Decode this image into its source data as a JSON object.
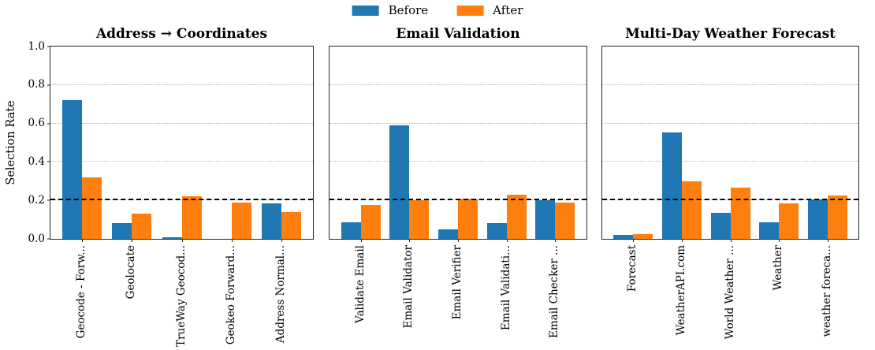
{
  "figure": {
    "ylabel": "Selection Rate",
    "background": "#ffffff",
    "gridline_color": "#b0b0b0",
    "baseline_color": "#000000"
  },
  "legend": {
    "position": "top-center",
    "items": [
      {
        "label": "Before",
        "color": "#1f77b4"
      },
      {
        "label": "After",
        "color": "#ff7f0e"
      }
    ]
  },
  "chart_data": [
    {
      "type": "bar",
      "title": "Address → Coordinates",
      "categories": [
        "Geocode - Forw...",
        "Geolocate",
        "TrueWay Geocod...",
        "Geokeo Forward...",
        "Address Normal..."
      ],
      "series": [
        {
          "name": "Before",
          "color": "#1f77b4",
          "values": [
            0.72,
            0.08,
            0.01,
            0.0,
            0.185
          ]
        },
        {
          "name": "After",
          "color": "#ff7f0e",
          "values": [
            0.32,
            0.13,
            0.22,
            0.19,
            0.14
          ]
        }
      ],
      "ylabel": "Selection Rate",
      "ylim": [
        0,
        1.0
      ],
      "yticks": [
        0.0,
        0.2,
        0.4,
        0.6,
        0.8,
        1.0
      ],
      "ytick_labels": [
        "0.0",
        "0.2",
        "0.4",
        "0.6",
        "0.8",
        "1.0"
      ],
      "baseline": 0.2,
      "grid": "horizontal dotted at 0.2, 0.4, 0.6, 0.8",
      "legend_position": "figure top center"
    },
    {
      "type": "bar",
      "title": "Email Validation",
      "categories": [
        "Validate Email",
        "Email Validator",
        "Email Verifier",
        "Email Validati...",
        "Email Checker ..."
      ],
      "series": [
        {
          "name": "Before",
          "color": "#1f77b4",
          "values": [
            0.085,
            0.59,
            0.05,
            0.08,
            0.2
          ]
        },
        {
          "name": "After",
          "color": "#ff7f0e",
          "values": [
            0.175,
            0.2,
            0.21,
            0.23,
            0.19
          ]
        }
      ],
      "ylim": [
        0,
        1.0
      ],
      "yticks": [
        0.0,
        0.2,
        0.4,
        0.6,
        0.8,
        1.0
      ],
      "ytick_labels": [],
      "baseline": 0.2,
      "grid": "horizontal dotted at 0.2, 0.4, 0.6, 0.8"
    },
    {
      "type": "bar",
      "title": "Multi-Day Weather Forecast",
      "categories": [
        "Forecast",
        "WeatherAPI.com",
        "World Weather ...",
        "Weather",
        "weather foreca..."
      ],
      "series": [
        {
          "name": "Before",
          "color": "#1f77b4",
          "values": [
            0.02,
            0.555,
            0.135,
            0.085,
            0.205
          ]
        },
        {
          "name": "After",
          "color": "#ff7f0e",
          "values": [
            0.025,
            0.3,
            0.265,
            0.185,
            0.225
          ]
        }
      ],
      "ylim": [
        0,
        1.0
      ],
      "yticks": [
        0.0,
        0.2,
        0.4,
        0.6,
        0.8,
        1.0
      ],
      "ytick_labels": [],
      "baseline": 0.2,
      "grid": "horizontal dotted at 0.2, 0.4, 0.6, 0.8"
    }
  ]
}
